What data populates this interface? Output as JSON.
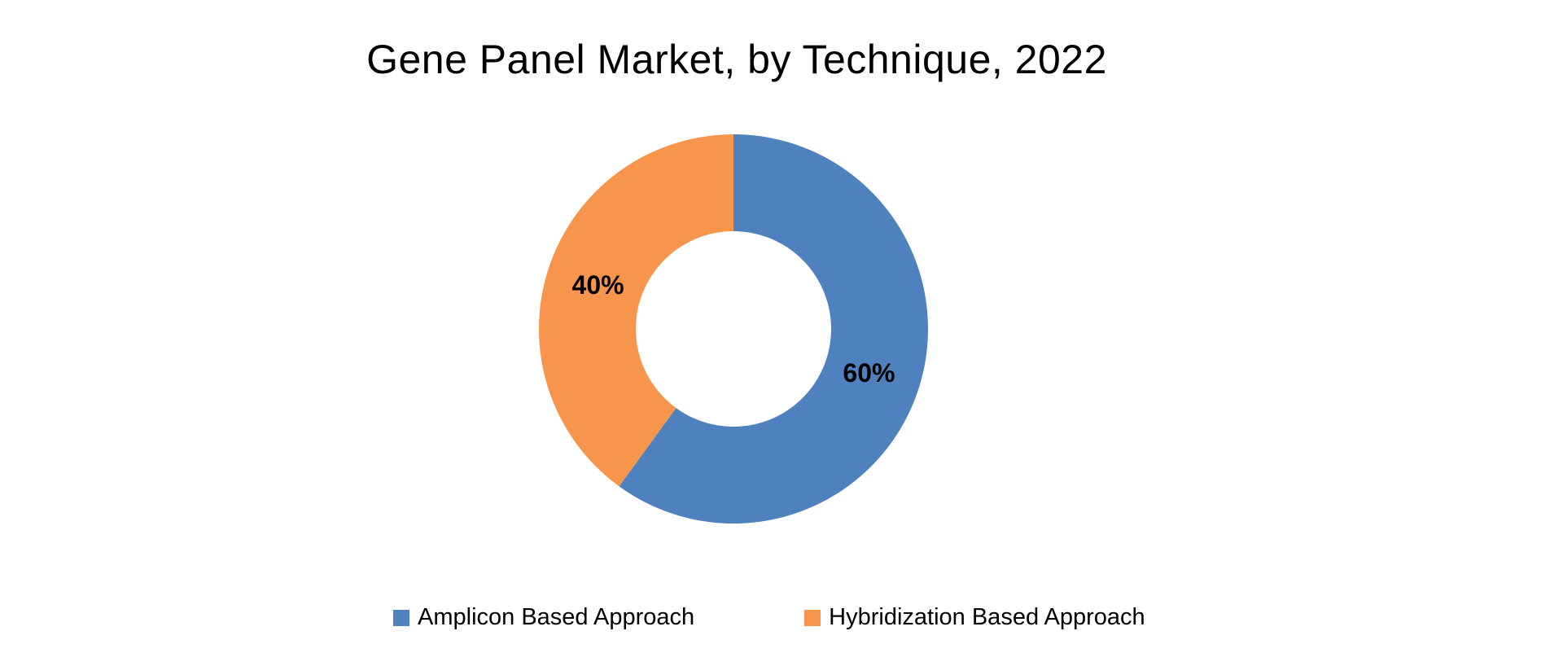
{
  "title": "Gene Panel Market, by Technique, 2022",
  "chart_data": {
    "type": "pie",
    "subtype": "donut",
    "title": "Gene Panel Market, by Technique, 2022",
    "unit": "percent",
    "start_angle_deg": 0,
    "direction": "clockwise",
    "inner_radius_ratio": 0.5,
    "legend_position": "bottom",
    "data_labels": "percent",
    "series": [
      {
        "name": "Amplicon Based Approach",
        "value": 60,
        "label": "60%",
        "color": "#4E81BD"
      },
      {
        "name": "Hybridization Based Approach",
        "value": 40,
        "label": "40%",
        "color": "#F6954B"
      }
    ],
    "data_label_color": "#000000",
    "background": "#FFFFFF"
  }
}
